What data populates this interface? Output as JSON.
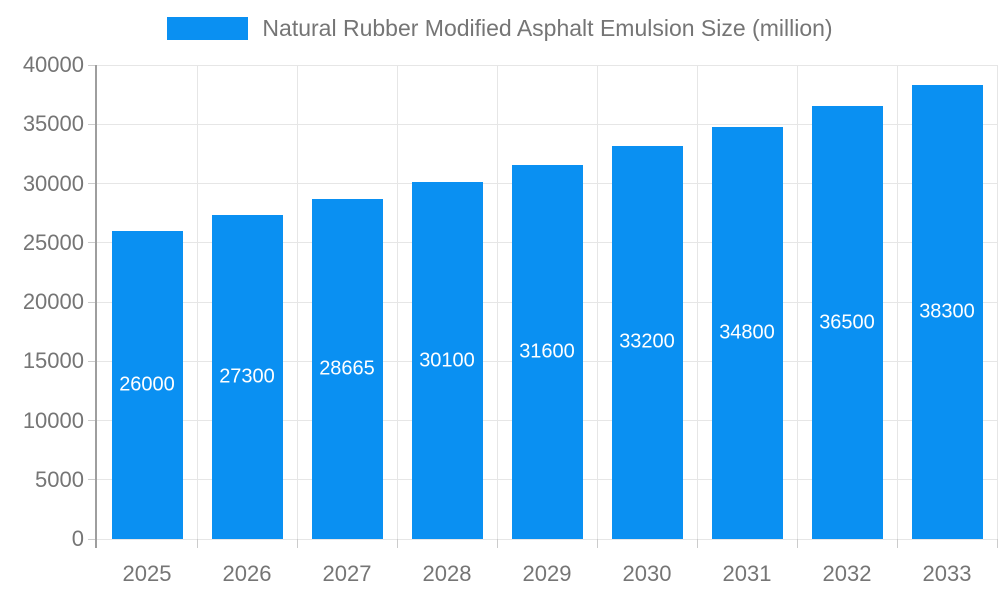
{
  "chart_data": {
    "type": "bar",
    "title": "Natural Rubber Modified Asphalt Emulsion Size (million)",
    "legend": [
      "Natural Rubber Modified Asphalt Emulsion Size (million)"
    ],
    "legend_position": "top",
    "categories": [
      "2025",
      "2026",
      "2027",
      "2028",
      "2029",
      "2030",
      "2031",
      "2032",
      "2033"
    ],
    "values": [
      26000,
      27300,
      28665,
      30100,
      31600,
      33200,
      34800,
      36500,
      38300
    ],
    "xlabel": "",
    "ylabel": "",
    "ylim": [
      0,
      40000
    ],
    "ytick_step": 5000,
    "yticks": [
      0,
      5000,
      10000,
      15000,
      20000,
      25000,
      30000,
      35000,
      40000
    ],
    "grid": true,
    "bar_labels_shown": true,
    "colors": {
      "bar": "#0a90f2",
      "bar_label": "#ffffff",
      "axis_text": "#757575",
      "gridline": "#e6e6e6",
      "tick": "#cccccc",
      "axis_line": "#9e9e9e",
      "background": "#ffffff"
    }
  }
}
